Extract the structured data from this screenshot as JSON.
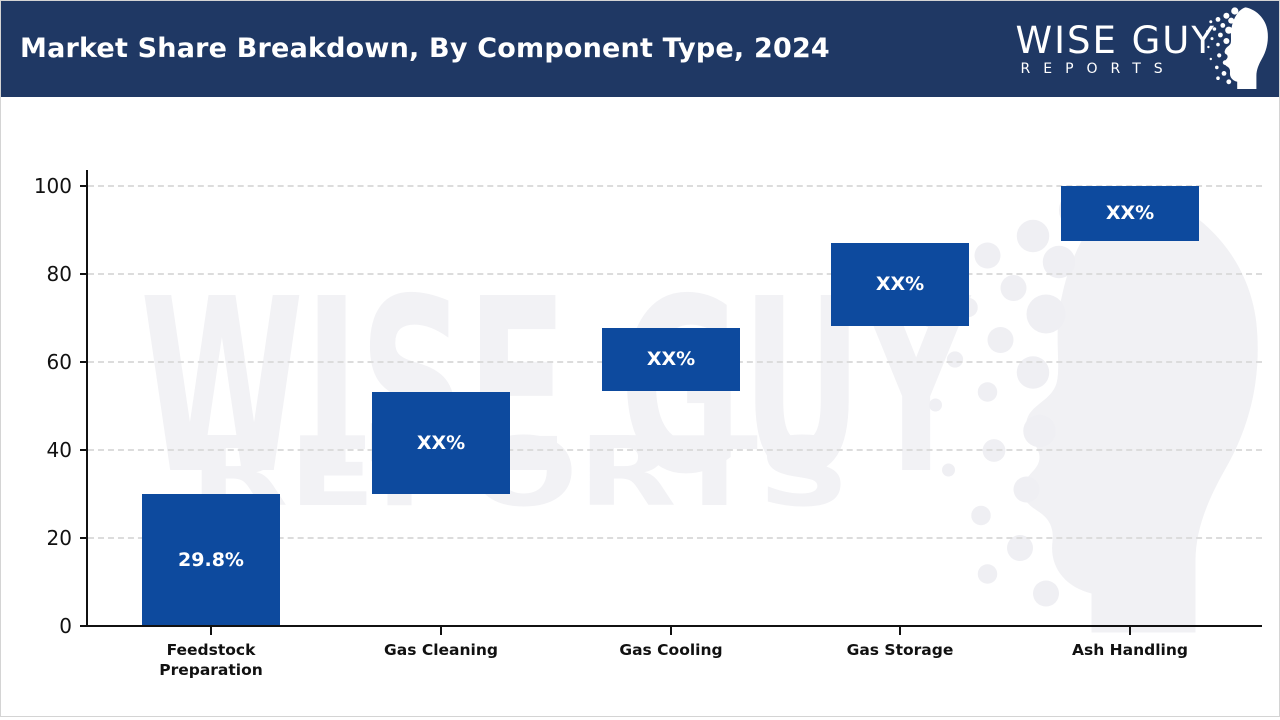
{
  "header": {
    "title": "Market Share Breakdown, By Component Type, 2024",
    "bg_color": "#1f3864",
    "logo": {
      "line1": "WISE GUY",
      "line2": "REPORTS"
    }
  },
  "watermark": {
    "line1": "WISE GUY",
    "line2": "REPORTS"
  },
  "chart_data": {
    "type": "bar",
    "subtype": "waterfall",
    "title": "Market Share Breakdown, By Component Type, 2024",
    "categories": [
      "Feedstock Preparation",
      "Gas Cleaning",
      "Gas Cooling",
      "Gas Storage",
      "Ash Handling"
    ],
    "segments": [
      {
        "category": "Feedstock Preparation",
        "start": 0,
        "end": 29.8,
        "label": "29.8%"
      },
      {
        "category": "Gas Cleaning",
        "start": 29.8,
        "end": 53.0,
        "label": "XX%"
      },
      {
        "category": "Gas Cooling",
        "start": 53.3,
        "end": 67.7,
        "label": "XX%"
      },
      {
        "category": "Gas Storage",
        "start": 68.1,
        "end": 87.0,
        "label": "XX%"
      },
      {
        "category": "Ash Handling",
        "start": 87.3,
        "end": 100.0,
        "label": "XX%"
      }
    ],
    "yticks": [
      0,
      20,
      40,
      60,
      80,
      100
    ],
    "ylim": [
      0,
      103.5
    ],
    "xlabel": "",
    "ylabel": "",
    "grid": "horizontal-dashed",
    "legend": "none",
    "bar_color": "#0d4a9e",
    "bar_label_color": "#ffffff",
    "grid_color": "#dcdcdc",
    "axis_color": "#111111"
  }
}
